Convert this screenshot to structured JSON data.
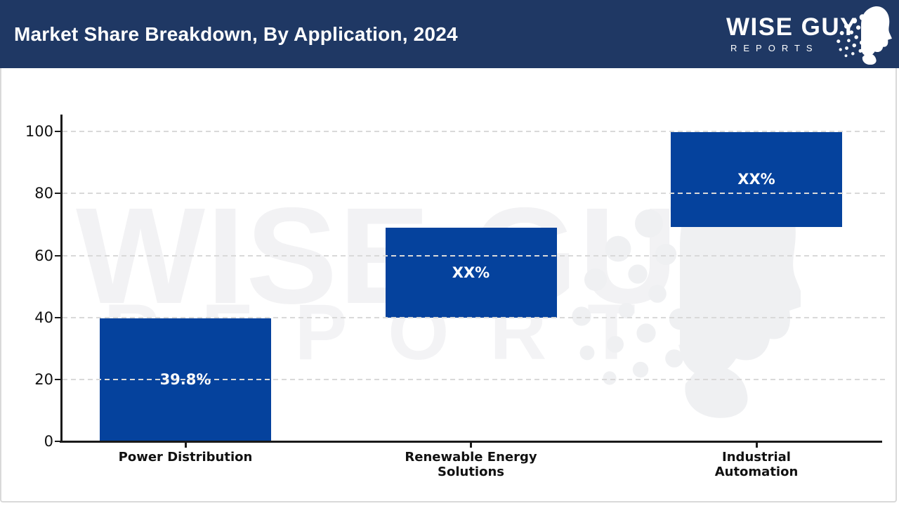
{
  "header": {
    "title": "Market Share Breakdown, By Application, 2024",
    "logo_line1": "WISE GUY",
    "logo_line2": "REPORTS"
  },
  "watermark": {
    "line1": "WISE GUY",
    "line2": "REPORTS"
  },
  "colors": {
    "header_bg": "#1f3864",
    "bar": "#05429d",
    "axis": "#1a1a1a",
    "grid": "#d9d9d9",
    "text": "#111111",
    "bar_label": "#ffffff",
    "watermark": "#f2f2f4"
  },
  "chart_data": {
    "type": "bar",
    "subtype": "floating-waterfall",
    "title": "Market Share Breakdown, By Application, 2024",
    "categories": [
      [
        "Power Distribution"
      ],
      [
        "Renewable Energy",
        "Solutions"
      ],
      [
        "Industrial",
        "Automation"
      ]
    ],
    "segments": [
      {
        "category": "Power Distribution",
        "start": 0,
        "end": 39.8,
        "label": "39.8%"
      },
      {
        "category": "Renewable Energy Solutions",
        "start": 40,
        "end": 69,
        "label": "XX%"
      },
      {
        "category": "Industrial Automation",
        "start": 69.3,
        "end": 99.8,
        "label": "XX%"
      }
    ],
    "xlabel": "",
    "ylabel": "",
    "ylim": [
      0,
      100
    ],
    "yticks": [
      0,
      20,
      40,
      60,
      80,
      100
    ],
    "grid": "horizontal-dashed-over-bars",
    "legend": "none"
  }
}
